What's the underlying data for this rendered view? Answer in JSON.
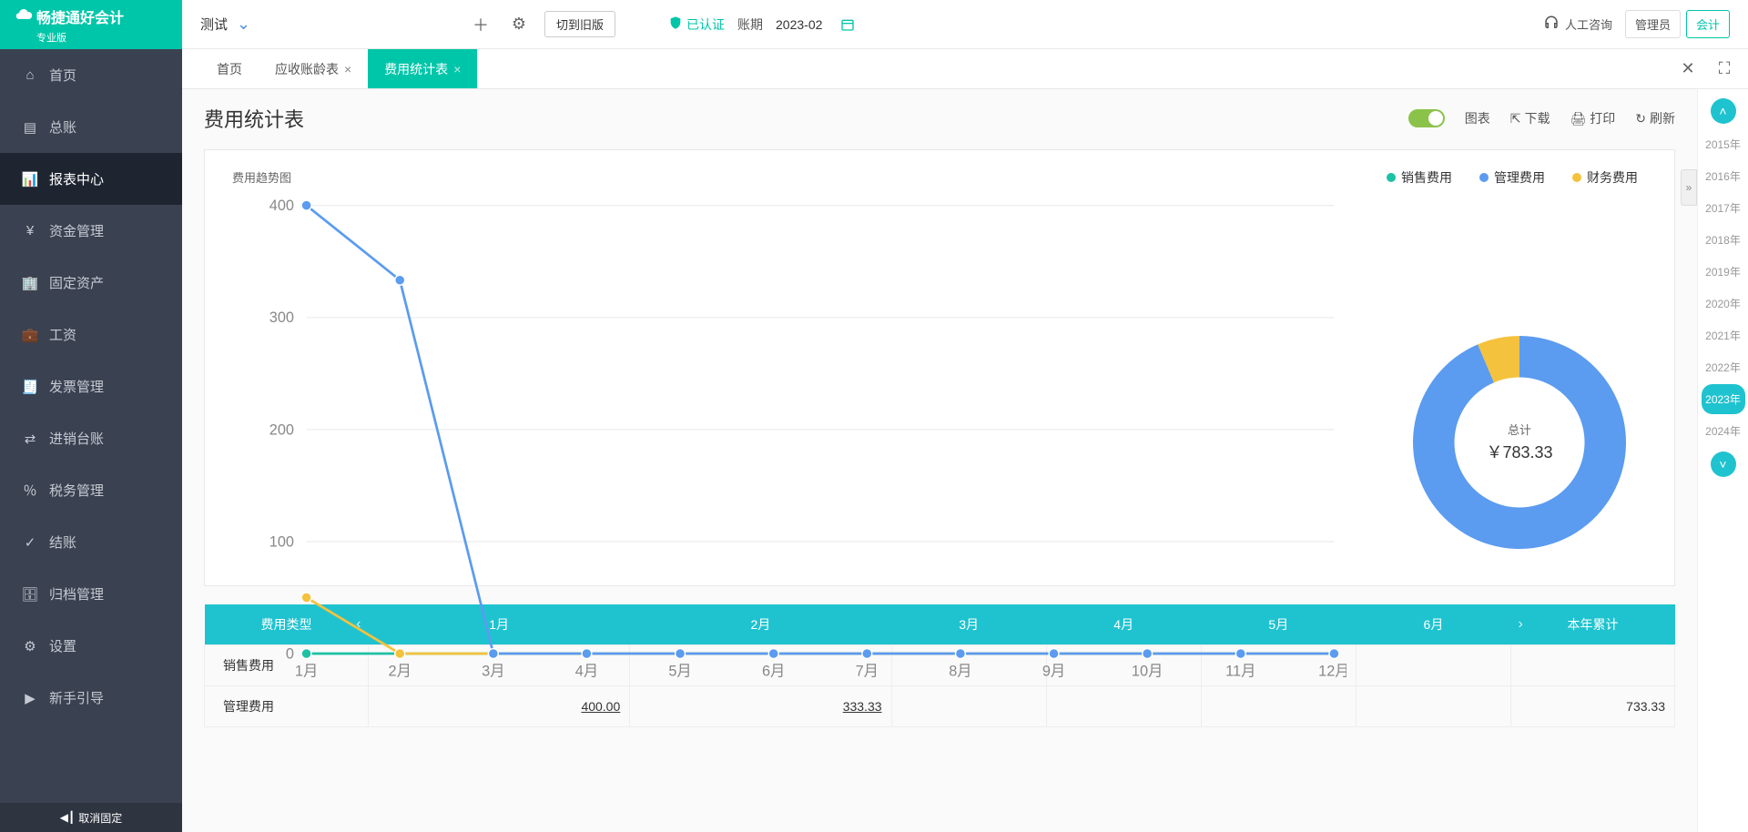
{
  "brand": {
    "name": "畅捷通好会计",
    "edition": "专业版"
  },
  "nav": {
    "items": [
      {
        "label": "首页"
      },
      {
        "label": "总账"
      },
      {
        "label": "报表中心"
      },
      {
        "label": "资金管理"
      },
      {
        "label": "固定资产"
      },
      {
        "label": "工资"
      },
      {
        "label": "发票管理"
      },
      {
        "label": "进销台账"
      },
      {
        "label": "税务管理"
      },
      {
        "label": "结账"
      },
      {
        "label": "归档管理"
      },
      {
        "label": "设置"
      },
      {
        "label": "新手引导"
      }
    ],
    "active_index": 2,
    "pin_label": "取消固定"
  },
  "topbar": {
    "company": "测试",
    "old_version_btn": "切到旧版",
    "verified": "已认证",
    "period_label": "账期",
    "period_value": "2023-02",
    "support": "人工咨询",
    "roles": [
      "管理员",
      "会计"
    ],
    "active_role_index": 1
  },
  "tabs": {
    "items": [
      {
        "label": "首页",
        "closable": false
      },
      {
        "label": "应收账龄表",
        "closable": true
      },
      {
        "label": "费用统计表",
        "closable": true
      }
    ],
    "active_index": 2
  },
  "page": {
    "title": "费用统计表",
    "actions": {
      "toggle_label": "图表",
      "download": "下载",
      "print": "打印",
      "refresh": "刷新"
    }
  },
  "chart": {
    "title": "费用趋势图",
    "legend": [
      {
        "label": "销售费用",
        "color": "#1dc1a3"
      },
      {
        "label": "管理费用",
        "color": "#5b9bf0"
      },
      {
        "label": "财务费用",
        "color": "#f5c23d"
      }
    ],
    "x_categories": [
      "1月",
      "2月",
      "3月",
      "4月",
      "5月",
      "6月",
      "7月",
      "8月",
      "9月",
      "10月",
      "11月",
      "12月"
    ],
    "y_ticks": [
      0,
      100,
      200,
      300,
      400
    ],
    "ylim": [
      0,
      400
    ],
    "series": {
      "sales": {
        "color": "#1dc1a3",
        "values": [
          0,
          0,
          0,
          0,
          0,
          0,
          0,
          0,
          0,
          0,
          0,
          0
        ]
      },
      "admin": {
        "color": "#5b9bf0",
        "values": [
          400,
          333.33,
          0,
          0,
          0,
          0,
          0,
          0,
          0,
          0,
          0,
          0
        ]
      },
      "finance": {
        "color": "#f5c23d",
        "values": [
          50,
          0,
          0,
          0,
          0,
          0,
          0,
          0,
          0,
          0,
          0,
          0
        ]
      }
    },
    "grid_color": "#eeeeee",
    "axis_color": "#cccccc"
  },
  "donut": {
    "center_label": "总计",
    "center_value": "￥783.33",
    "slices": [
      {
        "label": "管理费用",
        "color": "#5b9bf0",
        "pct": 0.936
      },
      {
        "label": "财务费用",
        "color": "#f5c23d",
        "pct": 0.064
      }
    ]
  },
  "table": {
    "type_header": "费用类型",
    "month_headers": [
      "1月",
      "2月",
      "3月",
      "4月",
      "5月",
      "6月"
    ],
    "total_header": "本年累计",
    "rows": [
      {
        "label": "销售费用",
        "cells": [
          "",
          "",
          "",
          "",
          "",
          ""
        ],
        "total": ""
      },
      {
        "label": "管理费用",
        "cells": [
          "400.00",
          "333.33",
          "",
          "",
          "",
          ""
        ],
        "total": "733.33"
      }
    ]
  },
  "year_rail": {
    "years": [
      "2015年",
      "2016年",
      "2017年",
      "2018年",
      "2019年",
      "2020年",
      "2021年",
      "2022年",
      "2023年",
      "2024年"
    ],
    "active_index": 8
  }
}
